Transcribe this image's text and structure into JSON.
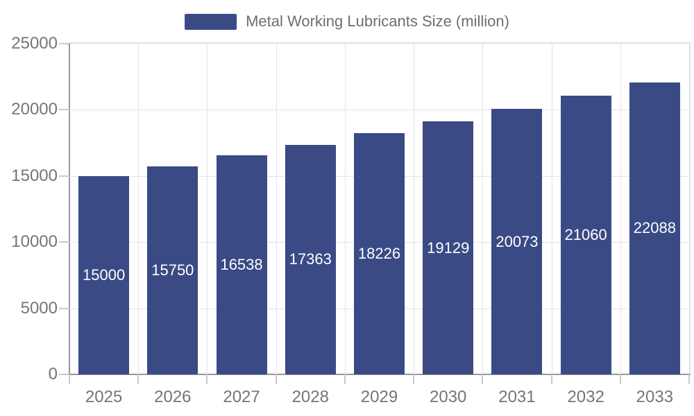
{
  "legend": {
    "label": "Metal Working Lubricants Size (million)",
    "swatch_color": "#394a85"
  },
  "chart_data": {
    "type": "bar",
    "title": "Metal Working Lubricants Size (million)",
    "categories": [
      "2025",
      "2026",
      "2027",
      "2028",
      "2029",
      "2030",
      "2031",
      "2032",
      "2033"
    ],
    "values": [
      15000,
      15750,
      16538,
      17363,
      18226,
      19129,
      20073,
      21060,
      22088
    ],
    "value_labels": [
      "15000",
      "15750",
      "16538",
      "17363",
      "18226",
      "19129",
      "20073",
      "21060",
      "22088"
    ],
    "series": [
      {
        "name": "Metal Working Lubricants Size (million)",
        "values": [
          15000,
          15750,
          16538,
          17363,
          18226,
          19129,
          20073,
          21060,
          22088
        ]
      }
    ],
    "xlabel": "",
    "ylabel": "",
    "ylim": [
      0,
      25000
    ],
    "yticks": [
      0,
      5000,
      10000,
      15000,
      20000,
      25000
    ],
    "ytick_labels": [
      "0",
      "5000",
      "10000",
      "15000",
      "20000",
      "25000"
    ],
    "grid": true,
    "legend_position": "top-center",
    "colors": {
      "bar": "#394a85",
      "bar_label_text": "#ffffff",
      "axis_line": "#999999",
      "plot_border": "#e0e0e0",
      "grid_line": "#e3e3e8",
      "tick_line": "#c9c9c9",
      "tick_label_text": "#757575",
      "legend_text": "#6e6e6e",
      "background": "#ffffff"
    }
  }
}
